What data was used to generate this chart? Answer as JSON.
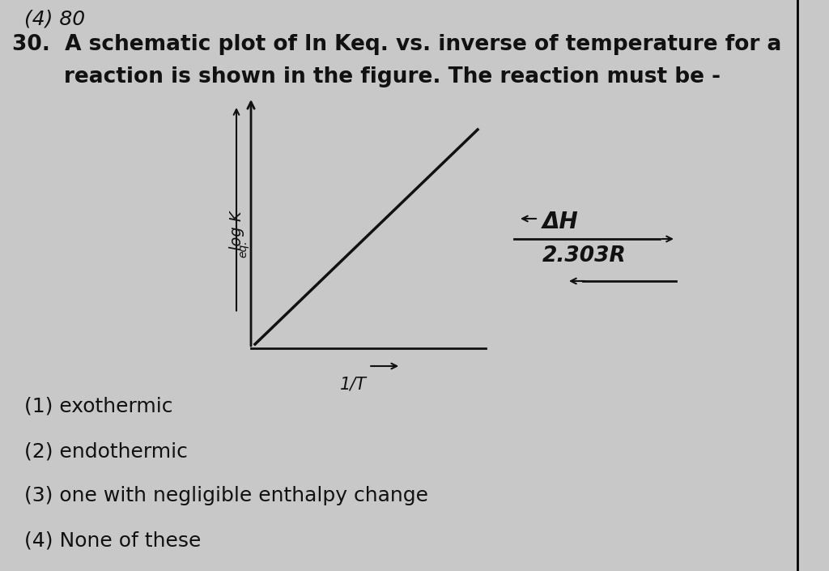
{
  "background_color": "#c8c8c8",
  "plot_bg_color": "#c0c0c0",
  "title_line1": "30.  A schematic plot of ln Keq. vs. inverse of temperature for a",
  "title_line2": "       reaction is shown in the figure. The reaction must be -",
  "header_text": "(4) 80",
  "y_axis_label": "log K",
  "y_axis_label_sub": "eq.",
  "x_axis_label": "1/T",
  "slope_numerator": "ΔH",
  "slope_denominator": "2.303R",
  "options": [
    "(1) exothermic",
    "(2) endothermic",
    "(3) one with negligible enthalpy change",
    "(4) None of these"
  ],
  "text_color": "#111111",
  "line_color": "#111111",
  "title_fontsize": 19,
  "header_fontsize": 18,
  "option_fontsize": 18,
  "axis_label_fontsize": 14,
  "slope_fontsize": 18
}
